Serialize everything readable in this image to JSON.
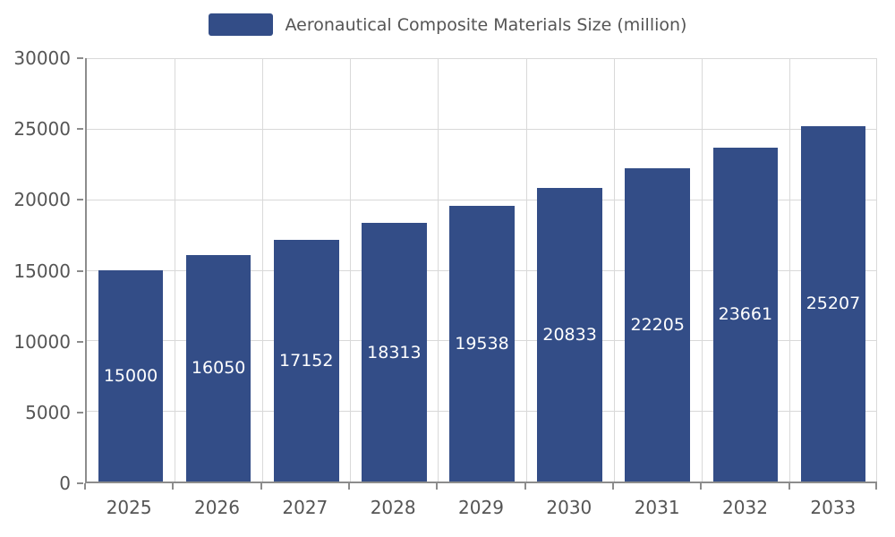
{
  "legend": {
    "label": "Aeronautical Composite Materials Size (million)"
  },
  "chart_data": {
    "type": "bar",
    "title": "Aeronautical Composite Materials Size (million)",
    "categories": [
      "2025",
      "2026",
      "2027",
      "2028",
      "2029",
      "2030",
      "2031",
      "2032",
      "2033"
    ],
    "values": [
      15000,
      16050,
      17152,
      18313,
      19538,
      20833,
      22205,
      23661,
      25207
    ],
    "xlabel": "",
    "ylabel": "",
    "ylim": [
      0,
      30000
    ],
    "yticks": [
      0,
      5000,
      10000,
      15000,
      20000,
      25000,
      30000
    ],
    "grid": true,
    "legend_position": "top",
    "value_labels": "inside-center",
    "bar_color": "#334D87",
    "value_label_color": "#ffffff",
    "grid_color": "#d9d9d9",
    "axis_color": "#8c8c8c",
    "text_color": "#555555"
  }
}
